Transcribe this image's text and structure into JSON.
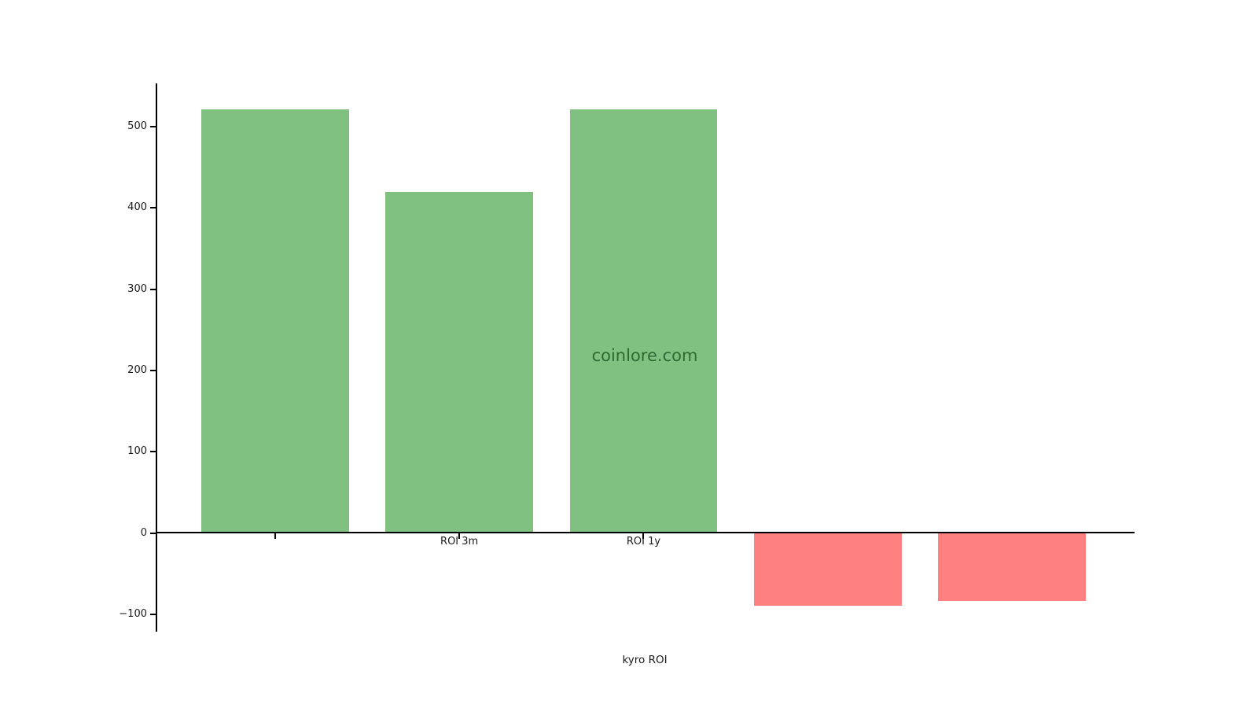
{
  "watermark": {
    "text": "coinlore.com",
    "color": "#2e6b33"
  },
  "chart_data": {
    "type": "bar",
    "title": "",
    "xlabel": "kyro ROI",
    "ylabel": "",
    "categories": [
      "",
      "ROI 3m",
      "ROI 1y",
      "",
      ""
    ],
    "values": [
      521,
      420,
      521,
      -89,
      -84
    ],
    "bar_colors": [
      "#80c080",
      "#80c080",
      "#80c080",
      "#ff8080",
      "#ff8080"
    ],
    "positive_color": "#80c080",
    "negative_color": "#ff8080",
    "x_ticks_visible": [
      true,
      true,
      true,
      false,
      false
    ],
    "yticks": [
      {
        "label": "500",
        "value": 500
      },
      {
        "label": "400",
        "value": 400
      },
      {
        "label": "300",
        "value": 300
      },
      {
        "label": "200",
        "value": 200
      },
      {
        "label": "100",
        "value": 100
      },
      {
        "label": "0",
        "value": 0
      },
      {
        "label": "−100",
        "value": -100
      }
    ],
    "ylim": [
      -119,
      552
    ],
    "grid": false,
    "legend_position": "none",
    "watermark": "coinlore.com"
  }
}
